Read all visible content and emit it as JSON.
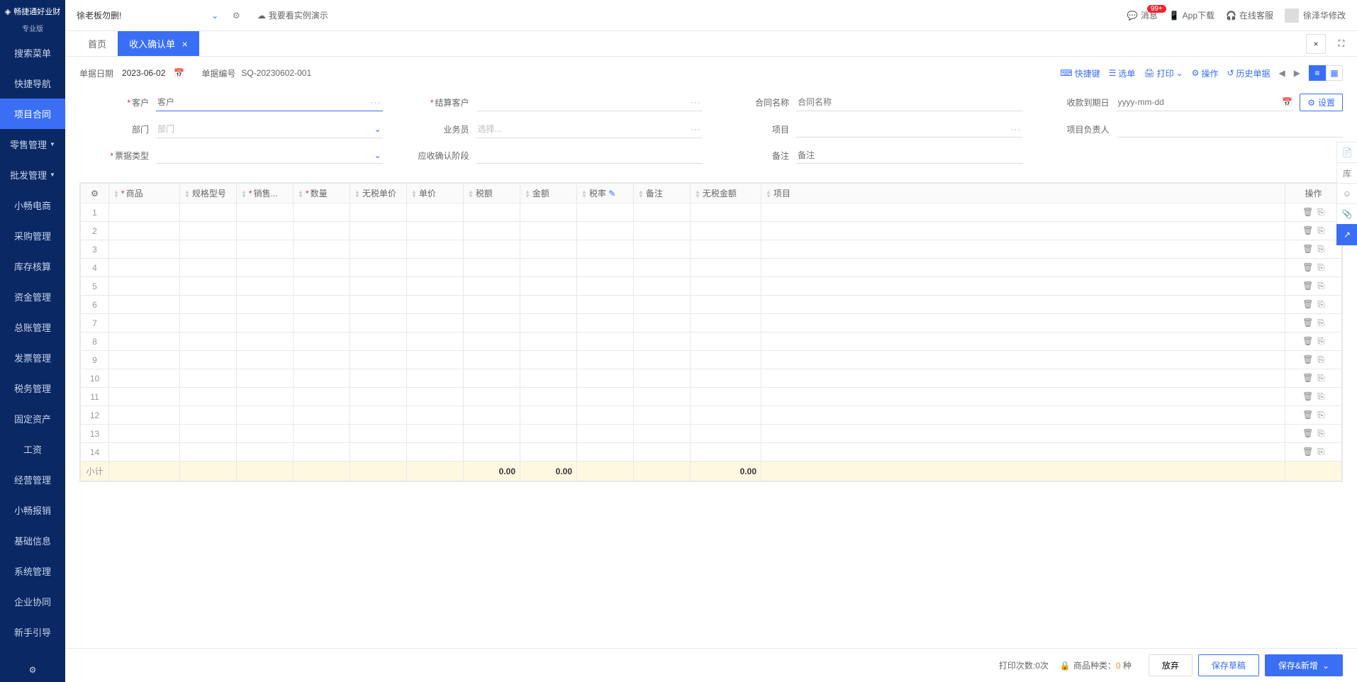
{
  "brand": {
    "name": "畅捷通好业财",
    "edition": "专业版"
  },
  "sidebar": {
    "items": [
      {
        "label": "搜索菜单",
        "expandable": false
      },
      {
        "label": "快捷导航",
        "expandable": false
      },
      {
        "label": "项目合同",
        "expandable": false,
        "active": true
      },
      {
        "label": "零售管理",
        "expandable": true
      },
      {
        "label": "批发管理",
        "expandable": true
      },
      {
        "label": "小畅电商",
        "expandable": false
      },
      {
        "label": "采购管理",
        "expandable": false
      },
      {
        "label": "库存核算",
        "expandable": false
      },
      {
        "label": "资金管理",
        "expandable": false
      },
      {
        "label": "总账管理",
        "expandable": false
      },
      {
        "label": "发票管理",
        "expandable": false
      },
      {
        "label": "税务管理",
        "expandable": false
      },
      {
        "label": "固定资产",
        "expandable": false
      },
      {
        "label": "工资",
        "expandable": false
      },
      {
        "label": "经营管理",
        "expandable": false
      },
      {
        "label": "小畅报销",
        "expandable": false
      },
      {
        "label": "基础信息",
        "expandable": false
      },
      {
        "label": "系统管理",
        "expandable": false
      },
      {
        "label": "企业协同",
        "expandable": false
      },
      {
        "label": "新手引导",
        "expandable": false
      }
    ]
  },
  "topbar": {
    "account": "徐老板勿删!",
    "demo_link": "我要看实例演示",
    "messages": {
      "label": "消息",
      "badge": "99+"
    },
    "app": "App下载",
    "service": "在线客服",
    "user": "徐泽华修改"
  },
  "tabs": {
    "home": "首页",
    "active": "收入确认单"
  },
  "doc": {
    "date_label": "单据日期",
    "date": "2023-06-02",
    "no_label": "单据编号",
    "no": "SQ-20230602-001",
    "actions": {
      "shortcut": "快捷键",
      "select": "选单",
      "print": "打印",
      "operate": "操作",
      "history": "历史单据"
    },
    "setup": "设置"
  },
  "form": {
    "customer": {
      "label": "客户",
      "placeholder": "客户"
    },
    "settle_customer": {
      "label": "结算客户"
    },
    "contract_name": {
      "label": "合同名称",
      "placeholder": "合同名称"
    },
    "receive_due": {
      "label": "收款到期日",
      "placeholder": "yyyy-mm-dd"
    },
    "department": {
      "label": "部门",
      "placeholder": "部门"
    },
    "salesman": {
      "label": "业务员",
      "placeholder": "选择..."
    },
    "project": {
      "label": "项目"
    },
    "project_owner": {
      "label": "项目负责人"
    },
    "invoice_type": {
      "label": "票据类型"
    },
    "confirm_stage": {
      "label": "应收确认阶段"
    },
    "remark": {
      "label": "备注",
      "placeholder": "备注"
    }
  },
  "table": {
    "columns": {
      "product": "商品",
      "spec": "规格型号",
      "sale": "销售...",
      "qty": "数量",
      "notax_price": "无税单价",
      "price": "单价",
      "tax_amount": "税额",
      "amount": "金额",
      "tax_rate": "税率",
      "note": "备注",
      "notax_amount": "无税金额",
      "item": "项目",
      "ops": "操作"
    },
    "row_count": 14,
    "subtotal": {
      "label": "小计",
      "tax_amount": "0.00",
      "amount": "0.00",
      "notax_amount": "0.00"
    }
  },
  "footer": {
    "print_count": "打印次数:0次",
    "sku_label": "商品种类：",
    "sku_count": "0",
    "sku_unit": " 种",
    "discard": "放弃",
    "draft": "保存草稿",
    "save_new": "保存&新增"
  }
}
